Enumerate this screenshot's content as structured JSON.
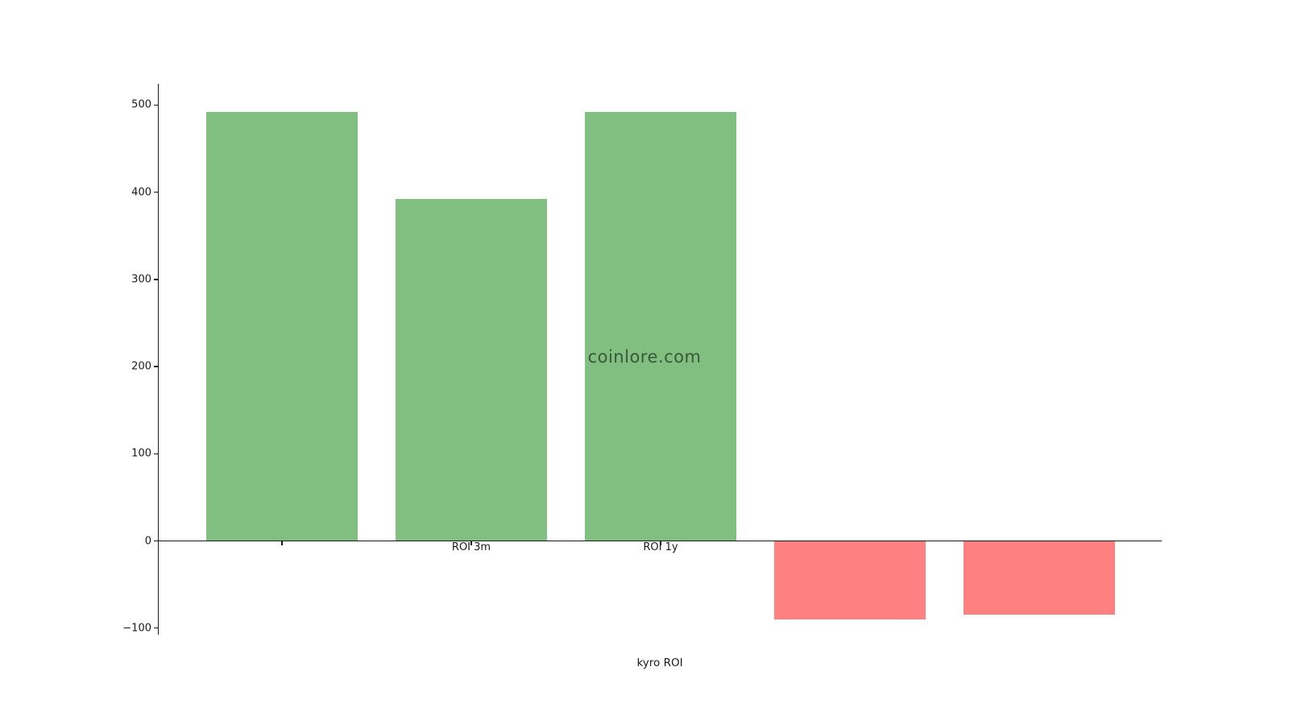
{
  "page": {
    "background_color": "#ffffff"
  },
  "chart_data": {
    "type": "bar",
    "title": "",
    "xlabel": "kyro ROI",
    "ylabel": "",
    "categories": [
      "",
      "ROI 3m",
      "ROI 1y",
      "",
      ""
    ],
    "values": [
      492,
      392,
      492,
      -90,
      -85
    ],
    "y_ticks": [
      500,
      400,
      300,
      200,
      100,
      0,
      -100
    ],
    "y_tick_labels": [
      "500",
      "400",
      "300",
      "200",
      "100",
      "0",
      "−100"
    ],
    "ylim": [
      -107,
      525
    ],
    "grid": false,
    "legend": false,
    "watermark": "coinlore.com",
    "colors": {
      "positive_bar": "#80bf80",
      "negative_bar": "#ff8080",
      "axis": "#1a1a1a",
      "watermark_text": "rgba(0,0,0,0.55)"
    }
  }
}
